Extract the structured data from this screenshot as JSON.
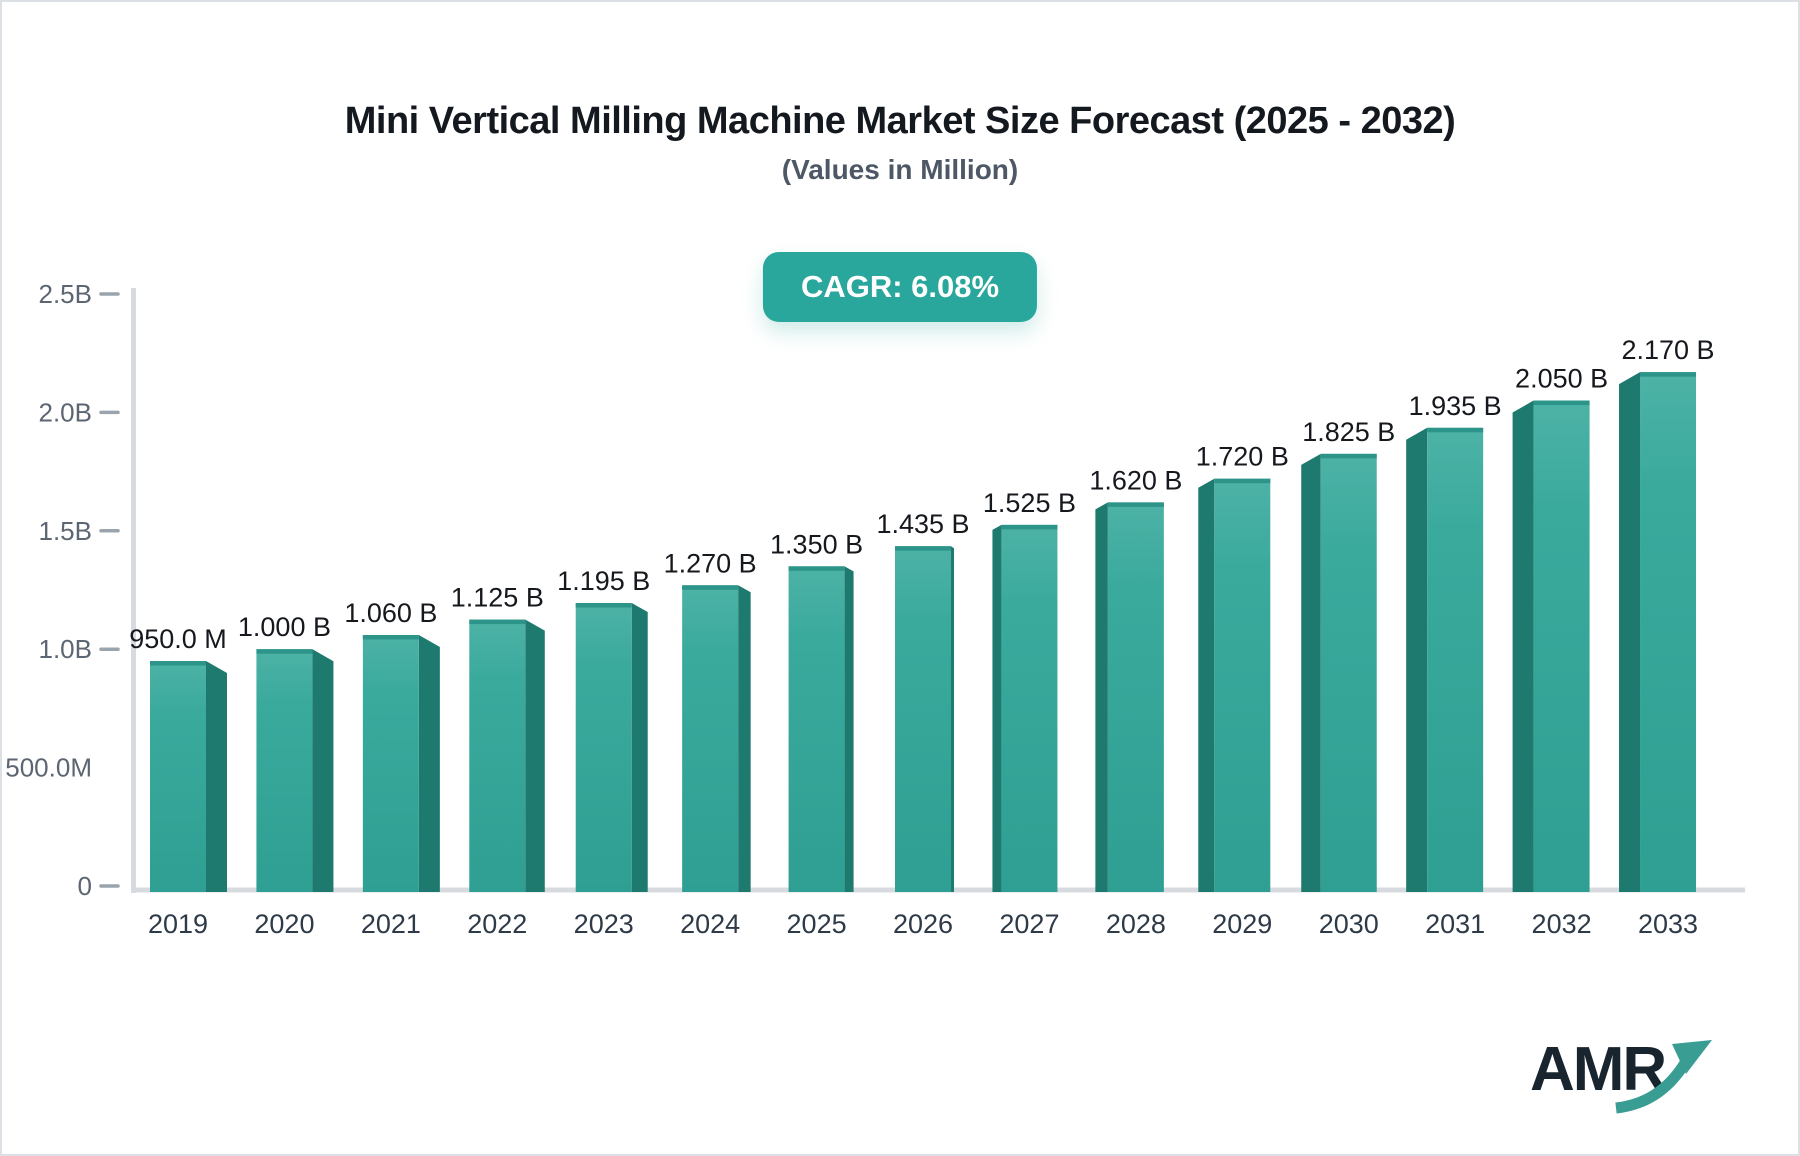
{
  "title": "Mini Vertical Milling Machine Market Size Forecast (2025 - 2032)",
  "subtitle": "(Values in Million)",
  "cagr_badge": "CAGR: 6.08%",
  "logo": {
    "text": "AMR"
  },
  "colors": {
    "badge_bg": "#2aa79c",
    "badge_text": "#ffffff",
    "bar_front_top": "#4db2a6",
    "bar_front_mid": "#3aaa9d",
    "bar_front_bottom": "#2f9f93",
    "bar_top_edge": "#2d9489",
    "bar_side": "#1e7a6f",
    "axis_line": "#d7dbe0",
    "tick_dash": "#9aa4ae",
    "tick_label": "#5c6672",
    "year_label": "#2f3a48",
    "value_label": "#15181d",
    "logo_text": "#18242e",
    "logo_arrow": "#3a9d93"
  },
  "chart_data": {
    "type": "bar",
    "title": "Mini Vertical Milling Machine Market Size Forecast (2025 - 2032)",
    "subtitle": "(Values in Million)",
    "annotation": "CAGR: 6.08%",
    "categories": [
      "2019",
      "2020",
      "2021",
      "2022",
      "2023",
      "2024",
      "2025",
      "2026",
      "2027",
      "2028",
      "2029",
      "2030",
      "2031",
      "2032",
      "2033"
    ],
    "values_million": [
      950,
      1000,
      1060,
      1125,
      1195,
      1270,
      1350,
      1435,
      1525,
      1620,
      1720,
      1825,
      1935,
      2050,
      2170
    ],
    "value_labels": [
      "950.0 M",
      "1.000 B",
      "1.060 B",
      "1.125 B",
      "1.195 B",
      "1.270 B",
      "1.350 B",
      "1.435 B",
      "1.525 B",
      "1.620 B",
      "1.720 B",
      "1.825 B",
      "1.935 B",
      "2.050 B",
      "2.170 B"
    ],
    "xlabel": "",
    "ylabel": "",
    "grid": false,
    "legend": null,
    "y_axis": {
      "min_million": 0,
      "max_million": 2500,
      "ticks": [
        {
          "label": "0",
          "value_million": 0,
          "dash": true
        },
        {
          "label": "500.0M",
          "value_million": 500,
          "dash": false
        },
        {
          "label": "1.0B",
          "value_million": 1000,
          "dash": true
        },
        {
          "label": "1.5B",
          "value_million": 1500,
          "dash": true
        },
        {
          "label": "2.0B",
          "value_million": 2000,
          "dash": true
        },
        {
          "label": "2.5B",
          "value_million": 2500,
          "dash": true
        }
      ]
    }
  }
}
